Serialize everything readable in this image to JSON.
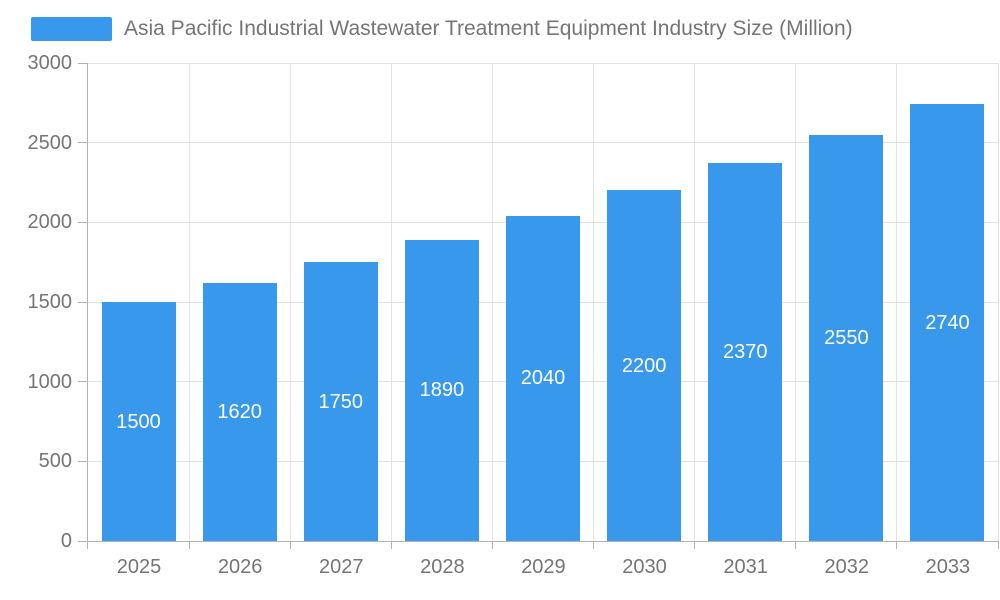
{
  "legend": {
    "label": "Asia Pacific Industrial Wastewater Treatment Equipment Industry Size (Million)"
  },
  "chart_data": {
    "type": "bar",
    "title": "Asia Pacific Industrial Wastewater Treatment Equipment Industry Size (Million)",
    "categories": [
      "2025",
      "2026",
      "2027",
      "2028",
      "2029",
      "2030",
      "2031",
      "2032",
      "2033"
    ],
    "values": [
      1500,
      1620,
      1750,
      1890,
      2040,
      2200,
      2370,
      2550,
      2740
    ],
    "xlabel": "",
    "ylabel": "",
    "ylim": [
      0,
      3000
    ],
    "ytick_step": 500,
    "yticks": [
      0,
      500,
      1000,
      1500,
      2000,
      2500,
      3000
    ],
    "grid": true,
    "legend_position": "top-left",
    "colors": {
      "bar": "#3899ec",
      "value_label": "#ffffff",
      "axis_text": "#757575",
      "grid_line": "#e3e3e3",
      "axis_line": "#b3b3b3"
    }
  }
}
